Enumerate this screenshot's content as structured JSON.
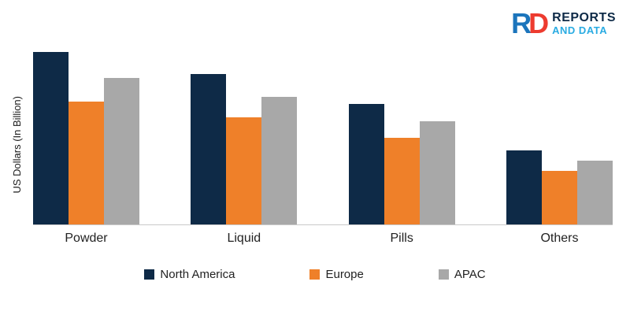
{
  "logo": {
    "monogram_r": "R",
    "monogram_d": "D",
    "line1": "REPORTS",
    "line2": "AND DATA",
    "colors": {
      "r": "#1c75bc",
      "d": "#ed3b2f",
      "line1": "#0e2a47",
      "line2": "#29abe2"
    }
  },
  "chart_data": {
    "type": "bar",
    "title": "",
    "xlabel": "",
    "ylabel": "US Dollars  (In Billion)",
    "categories": [
      "Powder",
      "Liquid",
      "Pills",
      "Others"
    ],
    "series": [
      {
        "name": "North America",
        "color": "#0e2a47",
        "values": [
          10.0,
          8.7,
          7.0,
          4.3
        ]
      },
      {
        "name": "Europe",
        "color": "#ef8029",
        "values": [
          7.1,
          6.2,
          5.0,
          3.1
        ]
      },
      {
        "name": "APAC",
        "color": "#a8a8a8",
        "values": [
          8.5,
          7.4,
          6.0,
          3.7
        ]
      }
    ],
    "ylim": [
      0,
      10.5
    ],
    "grid": false,
    "legend_position": "bottom",
    "axis_line_color": "#c9c9c9"
  }
}
